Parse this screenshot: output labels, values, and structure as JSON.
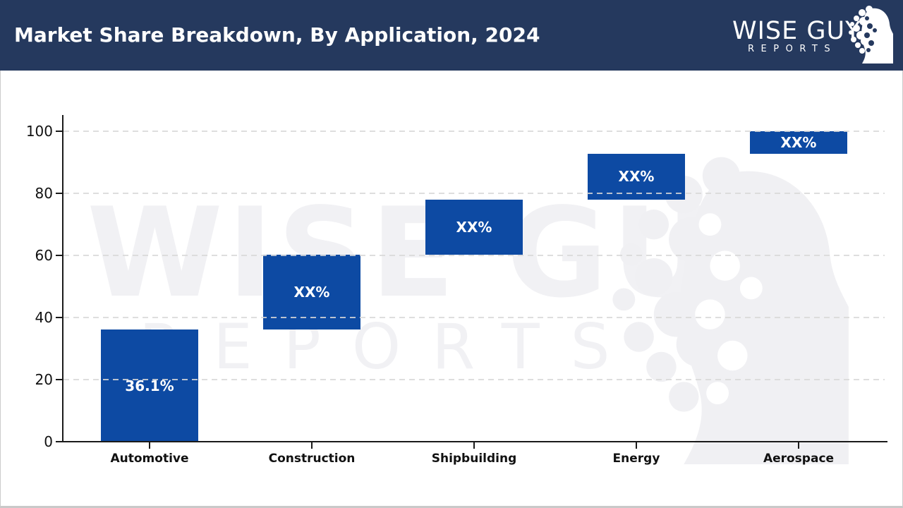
{
  "header": {
    "title": "Market Share Breakdown, By Application, 2024",
    "bg_color": "#25395e",
    "logo": {
      "line1": "WISE GUY",
      "line2": "REPORTS"
    }
  },
  "watermark": {
    "line1": "WISE GUY",
    "line2": "REPORTS",
    "color": "#f1f1f4"
  },
  "chart_data": {
    "type": "bar",
    "subtype": "waterfall",
    "title": "Market Share Breakdown, By Application, 2024",
    "categories": [
      "Automotive",
      "Construction",
      "Shipbuilding",
      "Energy",
      "Aerospace"
    ],
    "bar_labels": [
      "36.1%",
      "XX%",
      "XX%",
      "XX%",
      "XX%"
    ],
    "segments": [
      {
        "start": 0,
        "end": 36.1
      },
      {
        "start": 36.1,
        "end": 60.2
      },
      {
        "start": 60.2,
        "end": 78.0
      },
      {
        "start": 78.0,
        "end": 92.8
      },
      {
        "start": 92.8,
        "end": 100.0
      }
    ],
    "yticks": [
      0,
      20,
      40,
      60,
      80,
      100
    ],
    "ylim": [
      0,
      104
    ],
    "xlabel": "",
    "ylabel": "",
    "grid": "dashed-horizontal",
    "legend": false,
    "bar_color": "#0d4aa3",
    "bar_label_color": "#ffffff",
    "axis_color": "#1a1a1a"
  }
}
